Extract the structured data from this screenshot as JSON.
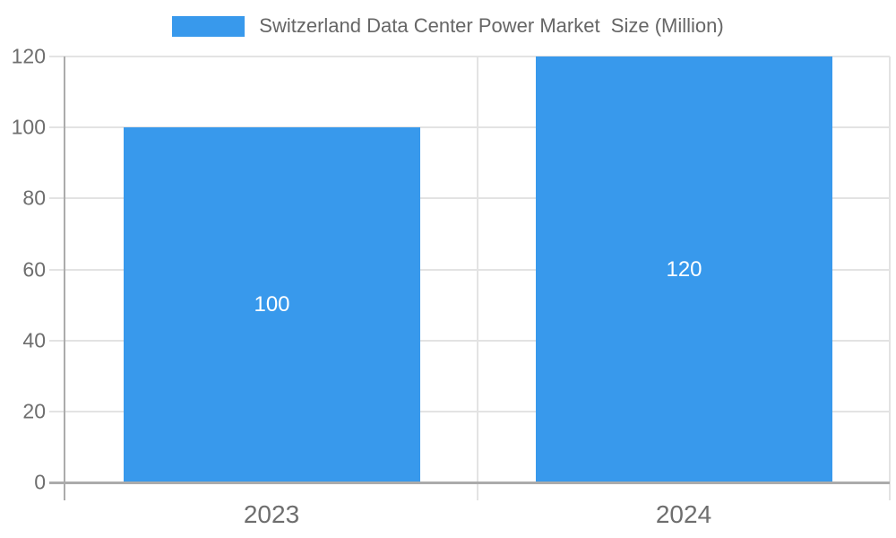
{
  "legend": {
    "label": "Switzerland Data Center Power Market  Size (Million)",
    "swatch_color": "#3899EC"
  },
  "chart_data": {
    "type": "bar",
    "title": "Switzerland Data Center Power Market  Size (Million)",
    "categories": [
      "2023",
      "2024"
    ],
    "series": [
      {
        "name": "Switzerland Data Center Power Market  Size (Million)",
        "values": [
          100,
          120
        ]
      }
    ],
    "values": [
      100,
      120
    ],
    "data_labels": [
      "100",
      "120"
    ],
    "xlabel": "",
    "ylabel": "",
    "ylim": [
      0,
      120
    ],
    "yticks": [
      0,
      20,
      40,
      60,
      80,
      100,
      120
    ],
    "grid": true,
    "legend_position": "top",
    "colors": {
      "bar": "#3899EC",
      "bar_label_text": "#FFFFFF",
      "axis_text": "#6E6E6E",
      "legend_text": "#666666",
      "gridline": "#E3E3E3",
      "axis_line": "#ABABAB"
    }
  }
}
